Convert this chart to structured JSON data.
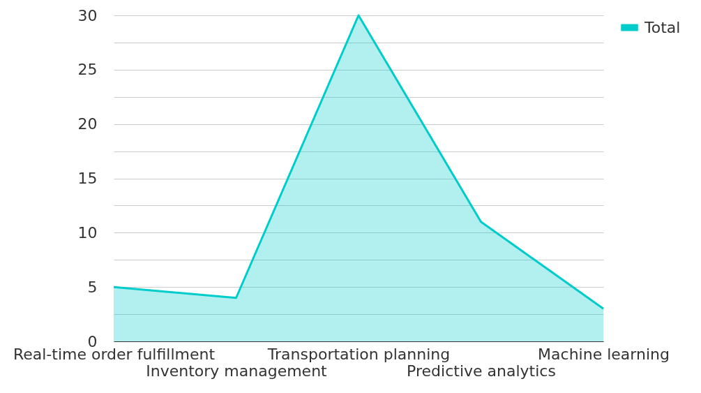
{
  "chart_data": {
    "type": "area",
    "categories": [
      "Real-time order fulfillment",
      "Inventory management",
      "Transportation planning",
      "Predictive analytics",
      "Machine learning"
    ],
    "series": [
      {
        "name": "Total",
        "color": "#00cccc",
        "values": [
          5,
          4,
          30,
          11,
          3
        ]
      }
    ],
    "ylim": [
      0,
      30
    ],
    "yticks": [
      0,
      {
        "value": 2.5,
        "label": null
      },
      5,
      {
        "value": 7.5,
        "label": null
      },
      10,
      {
        "value": 12.5,
        "label": null
      },
      15,
      {
        "value": 17.5,
        "label": null
      },
      20,
      {
        "value": 22.5,
        "label": null
      },
      25,
      {
        "value": 27.5,
        "label": null
      },
      30
    ],
    "grid": "y",
    "legend": "top right"
  }
}
